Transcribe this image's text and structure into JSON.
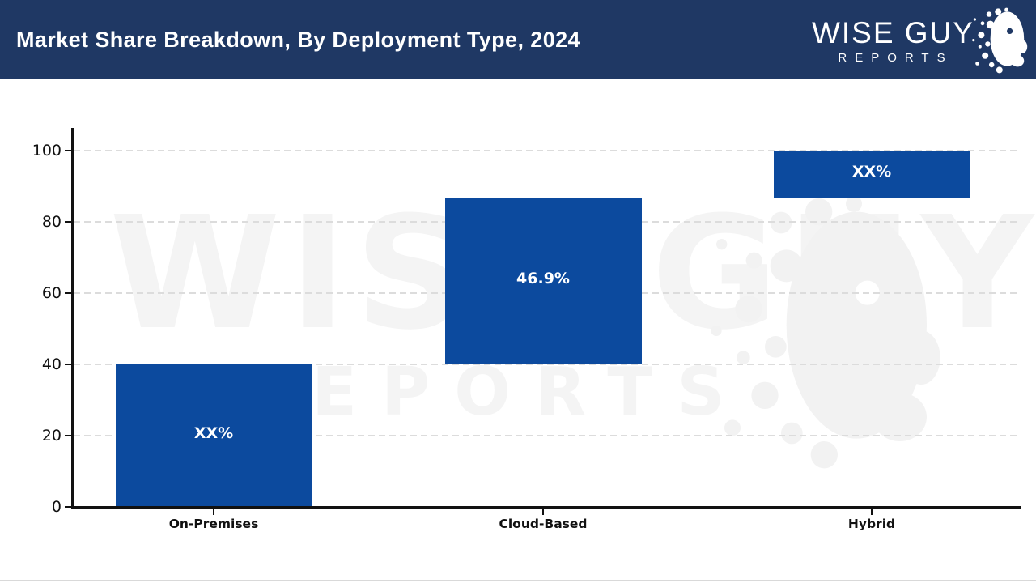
{
  "header": {
    "title": "Market Share Breakdown, By Deployment Type, 2024",
    "background_color": "#1f3864",
    "logo": {
      "line1": "WISE GUY",
      "line2": "REPORTS"
    }
  },
  "watermark": {
    "line1": "WISE GUY",
    "line2": "REPORTS"
  },
  "chart_data": {
    "type": "bar",
    "subtype": "waterfall-floating-bars",
    "title": "Market Share Breakdown, By Deployment Type, 2024",
    "categories": [
      "On-Premises",
      "Cloud-Based",
      "Hybrid"
    ],
    "segments": [
      {
        "category": "On-Premises",
        "start": 0,
        "end": 40,
        "value": 40,
        "value_label": "XX%"
      },
      {
        "category": "Cloud-Based",
        "start": 40,
        "end": 86.9,
        "value": 46.9,
        "value_label": "46.9%"
      },
      {
        "category": "Hybrid",
        "start": 86.9,
        "end": 100,
        "value": 13.1,
        "value_label": "XX%"
      }
    ],
    "xlabel": "",
    "ylabel": "",
    "ylim": [
      0,
      100
    ],
    "yticks": [
      0,
      20,
      40,
      60,
      80,
      100
    ],
    "grid": "horizontal dashed",
    "legend": "none",
    "bar_color": "#0c4a9e",
    "bar_label_color": "#ffffff",
    "axis_color": "#111111"
  }
}
